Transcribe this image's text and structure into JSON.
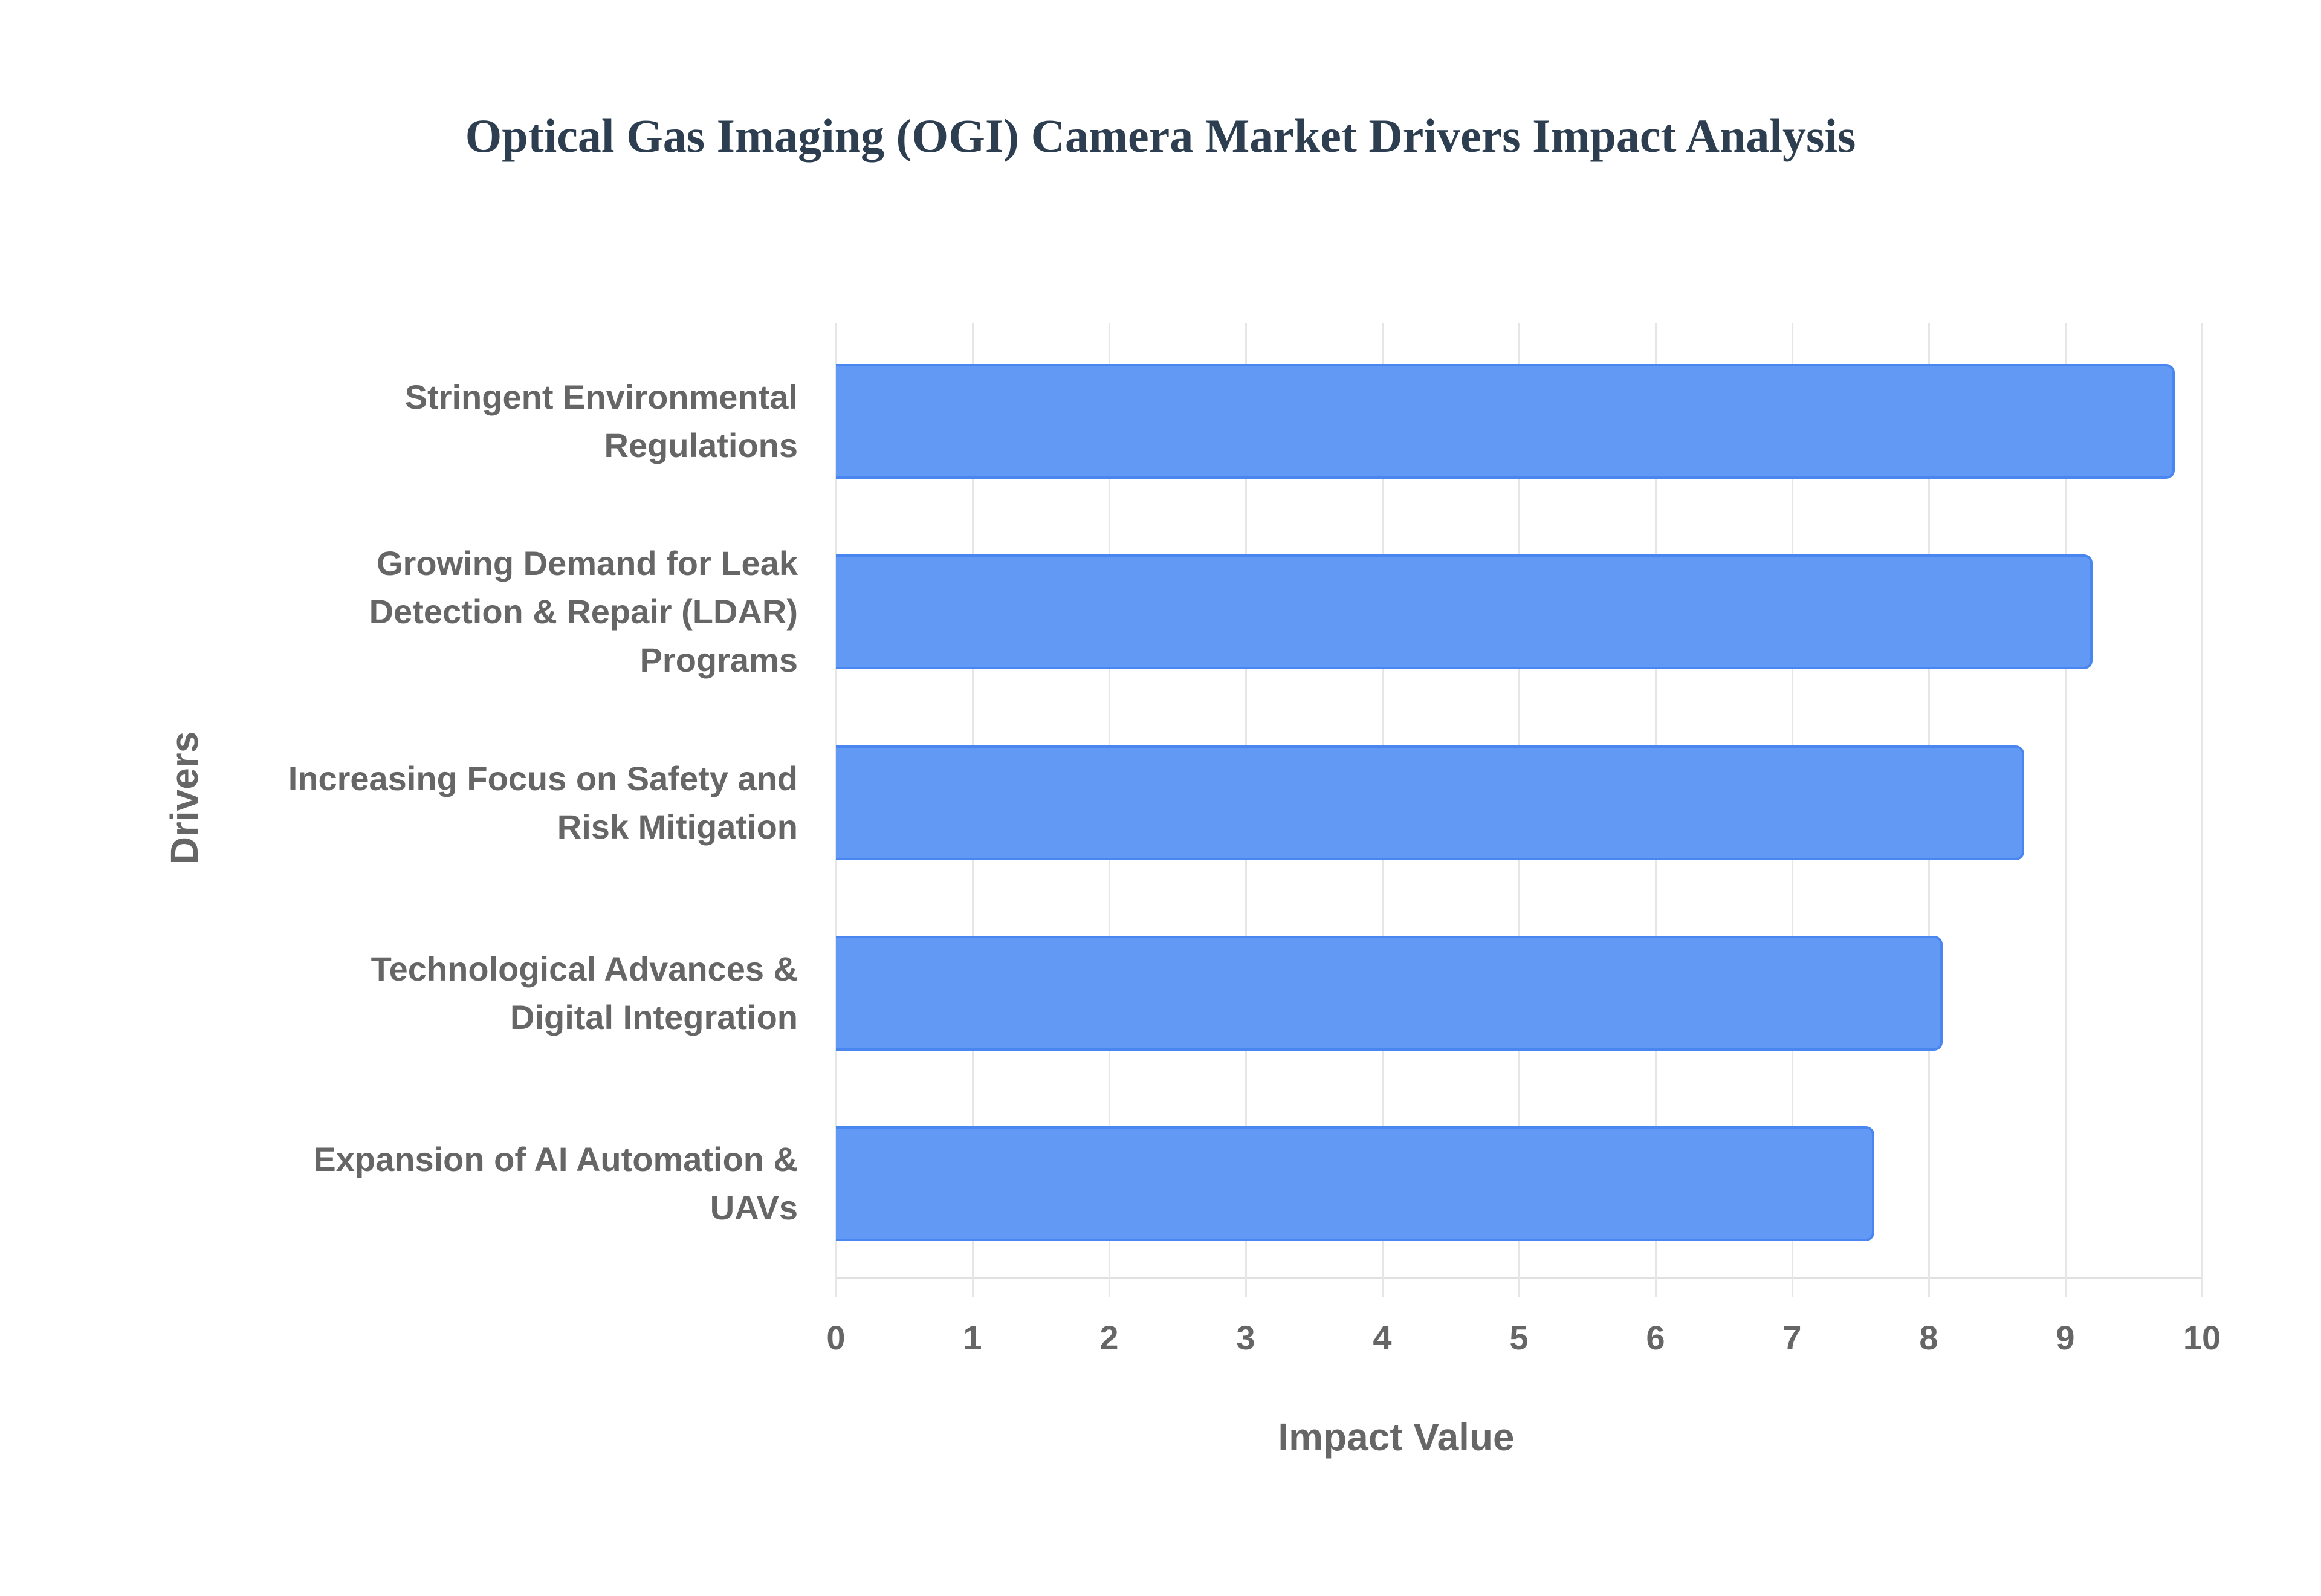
{
  "chart_data": {
    "type": "bar",
    "orientation": "horizontal",
    "title": "Optical Gas Imaging (OGI) Camera Market Drivers Impact Analysis",
    "xlabel": "Impact Value",
    "ylabel": "Drivers",
    "categories": [
      "Stringent Environmental Regulations",
      "Growing Demand for Leak Detection & Repair (LDAR) Programs",
      "Increasing Focus on Safety and Risk Mitigation",
      "Technological Advances & Digital Integration",
      "Expansion of AI Automation & UAVs"
    ],
    "category_lines": [
      "Stringent Environmental\nRegulations",
      "Growing Demand for Leak\nDetection & Repair (LDAR)\nPrograms",
      "Increasing Focus on Safety and\nRisk Mitigation",
      "Technological Advances &\nDigital Integration",
      "Expansion of AI Automation &\nUAVs"
    ],
    "values": [
      9.8,
      9.2,
      8.7,
      8.1,
      7.6
    ],
    "xlim": [
      0,
      10
    ],
    "xticks": [
      "0",
      "1",
      "2",
      "3",
      "4",
      "5",
      "6",
      "7",
      "8",
      "9",
      "10"
    ],
    "grid": true,
    "legend": "none",
    "colors": {
      "bar_fill": "#6199f5",
      "bar_border": "#4a86ef",
      "title": "#2c3e50",
      "axis_text": "#666666"
    }
  }
}
